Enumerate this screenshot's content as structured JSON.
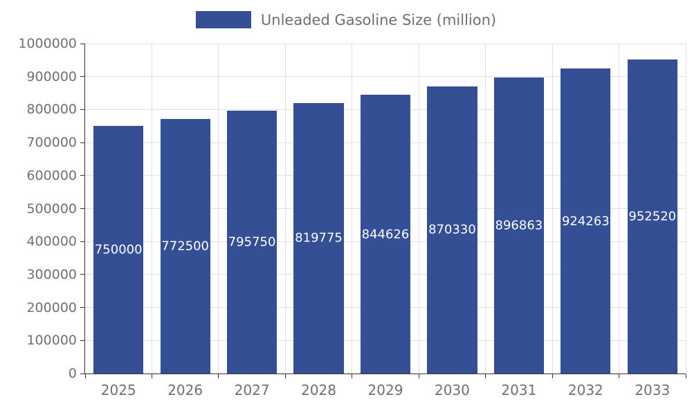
{
  "legend": {
    "label": "Unleaded Gasoline Size (million)"
  },
  "colors": {
    "bar": "#344f93",
    "axis": "#333333",
    "grid": "#e0e0e0",
    "text": "#6e7079",
    "value_label": "#ffffff"
  },
  "chart_data": {
    "type": "bar",
    "title": "",
    "xlabel": "",
    "ylabel": "",
    "categories": [
      "2025",
      "2026",
      "2027",
      "2028",
      "2029",
      "2030",
      "2031",
      "2032",
      "2033"
    ],
    "values": [
      750000,
      772500,
      795750,
      819775,
      844626,
      870330,
      896863,
      924263,
      952520
    ],
    "series_name": "Unleaded Gasoline Size (million)",
    "ylim": [
      0,
      1000000
    ],
    "ytick_step": 100000,
    "ytick_labels": [
      "0",
      "100000",
      "200000",
      "300000",
      "400000",
      "500000",
      "600000",
      "700000",
      "800000",
      "900000",
      "1000000"
    ],
    "grid": true,
    "legend_position": "top-center",
    "bar_width_fraction": 0.75
  }
}
